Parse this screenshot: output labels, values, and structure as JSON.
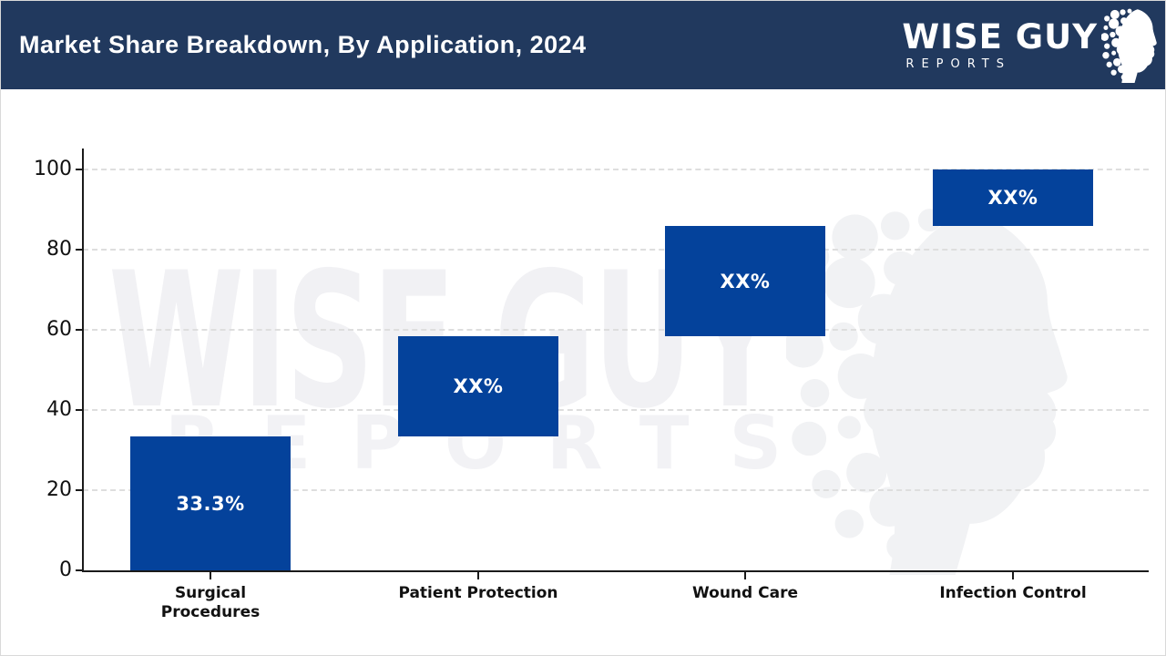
{
  "header": {
    "title": "Market Share Breakdown, By Application, 2024",
    "bg_color": "#21395e",
    "text_color": "#ffffff"
  },
  "logo": {
    "line1": "WISE GUY",
    "line2": "REPORTS"
  },
  "watermark": {
    "line1": "WISE GUY",
    "line2": "REPORTS"
  },
  "chart_data": {
    "type": "bar",
    "variant": "waterfall",
    "title": "Market Share Breakdown, By Application, 2024",
    "categories": [
      "Surgical Procedures",
      "Patient Protection",
      "Wound Care",
      "Infection Control"
    ],
    "category_label_lines": [
      [
        "Surgical",
        "Procedures"
      ],
      [
        "Patient Protection"
      ],
      [
        "Wound Care"
      ],
      [
        "Infection Control"
      ]
    ],
    "segments": [
      {
        "category": "Surgical Procedures",
        "start": 0,
        "end": 33.3,
        "label": "33.3%"
      },
      {
        "category": "Patient Protection",
        "start": 33.3,
        "end": 58.3,
        "label": "XX%"
      },
      {
        "category": "Wound Care",
        "start": 58.3,
        "end": 86.0,
        "label": "XX%"
      },
      {
        "category": "Infection Control",
        "start": 86.0,
        "end": 100,
        "label": "XX%"
      }
    ],
    "xlabel": "",
    "ylabel": "",
    "ylim": [
      0,
      100
    ],
    "yticks": [
      0,
      20,
      40,
      60,
      80,
      100
    ],
    "grid": "horizontal-dashed",
    "legend": "none",
    "bar_color": "#04429b",
    "bar_label_color": "#ffffff",
    "axis_color": "#1a1a1a",
    "gridline_color": "#dedede"
  }
}
